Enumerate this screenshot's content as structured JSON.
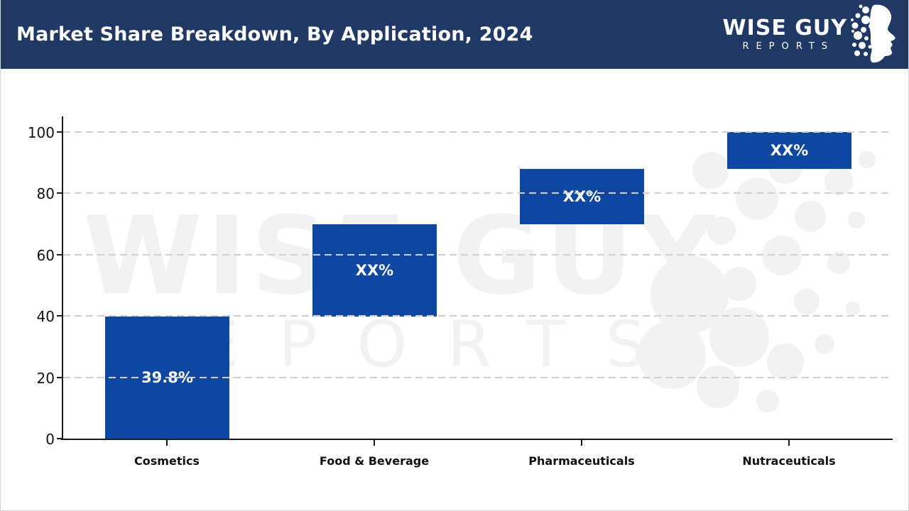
{
  "header": {
    "title": "Market Share Breakdown, By Application, 2024",
    "bg_color": "#203864",
    "logo": {
      "line1": "WISE GUY",
      "line2": "REPORTS"
    }
  },
  "watermark": {
    "line1": "WISE GUY",
    "line2": "REPORTS"
  },
  "chart_data": {
    "type": "bar",
    "subtype": "waterfall-stacked-breakdown",
    "title": "Market Share Breakdown, By Application, 2024",
    "categories": [
      "Cosmetics",
      "Food & Beverage",
      "Pharmaceuticals",
      "Nutraceuticals"
    ],
    "segments": [
      {
        "category": "Cosmetics",
        "label": "39.8%",
        "start": 0,
        "end": 39.8
      },
      {
        "category": "Food & Beverage",
        "label": "XX%",
        "start": 39.8,
        "end": 69.8
      },
      {
        "category": "Pharmaceuticals",
        "label": "XX%",
        "start": 69.8,
        "end": 87.8
      },
      {
        "category": "Nutraceuticals",
        "label": "XX%",
        "start": 87.8,
        "end": 99.8
      }
    ],
    "bar_labels": [
      "39.8%",
      "XX%",
      "XX%",
      "XX%"
    ],
    "xlabel": "",
    "ylabel": "",
    "ylim": [
      0,
      105
    ],
    "yticks": [
      0,
      20,
      40,
      60,
      80,
      100
    ],
    "grid": "horizontal-dashed",
    "legend": "none",
    "bar_color": "#0d47a1",
    "bar_label_color": "#ffffff",
    "grid_color": "#d0d0d0",
    "axis_color": "#1a1a1a",
    "watermark_color": "#f2f2f2"
  }
}
